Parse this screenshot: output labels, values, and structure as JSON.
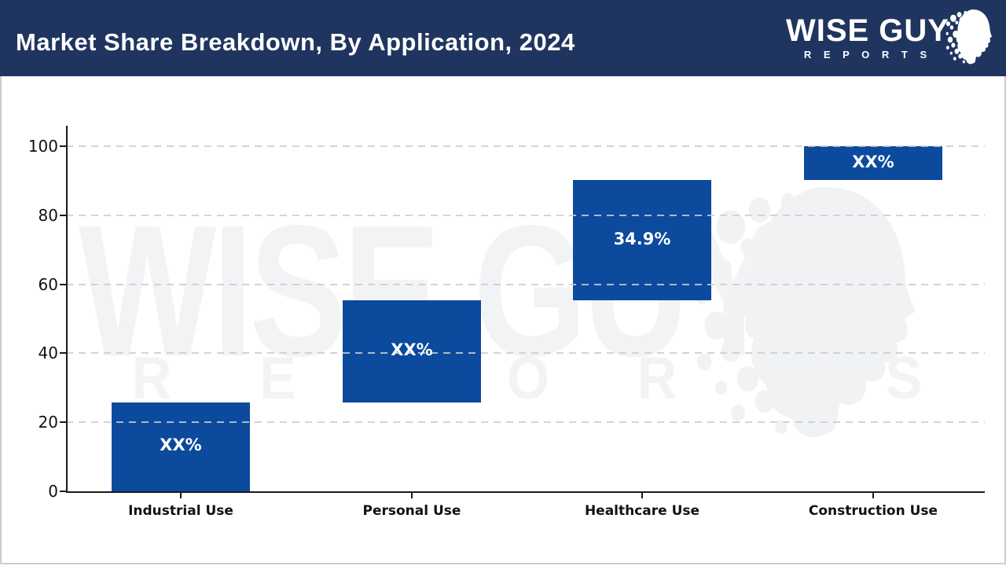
{
  "header": {
    "title": "Market Share Breakdown, By Application, 2024",
    "logo": {
      "line1": "WISE GUY",
      "line2": "R E P O R T S"
    }
  },
  "watermark": {
    "line1": "WISE GUY",
    "line2": "R E P O R T S"
  },
  "colors": {
    "header_bg": "#1f3560",
    "bar": "#0c4a9e",
    "grid": "#c9ccd1",
    "axis": "#1a1a1a",
    "watermark": "#f2f3f5"
  },
  "chart_data": {
    "type": "bar",
    "subtype": "waterfall",
    "title": "Market Share Breakdown, By Application, 2024",
    "categories": [
      "Industrial Use",
      "Personal Use",
      "Healthcare Use",
      "Construction Use"
    ],
    "segments": [
      {
        "category": "Industrial Use",
        "start": 0,
        "end": 25.8,
        "label": "XX%"
      },
      {
        "category": "Personal Use",
        "start": 25.8,
        "end": 55.3,
        "label": "XX%"
      },
      {
        "category": "Healthcare Use",
        "start": 55.3,
        "end": 90.2,
        "label": "34.9%"
      },
      {
        "category": "Construction Use",
        "start": 90.2,
        "end": 100,
        "label": "XX%"
      }
    ],
    "xlabel": "",
    "ylabel": "",
    "ylim": [
      0,
      100
    ],
    "yticks": [
      0,
      20,
      40,
      60,
      80,
      100
    ],
    "grid": "horizontal-dashed",
    "legend": "none",
    "bar_color": "#0c4a9e",
    "bar_label_color": "#ffffff"
  }
}
